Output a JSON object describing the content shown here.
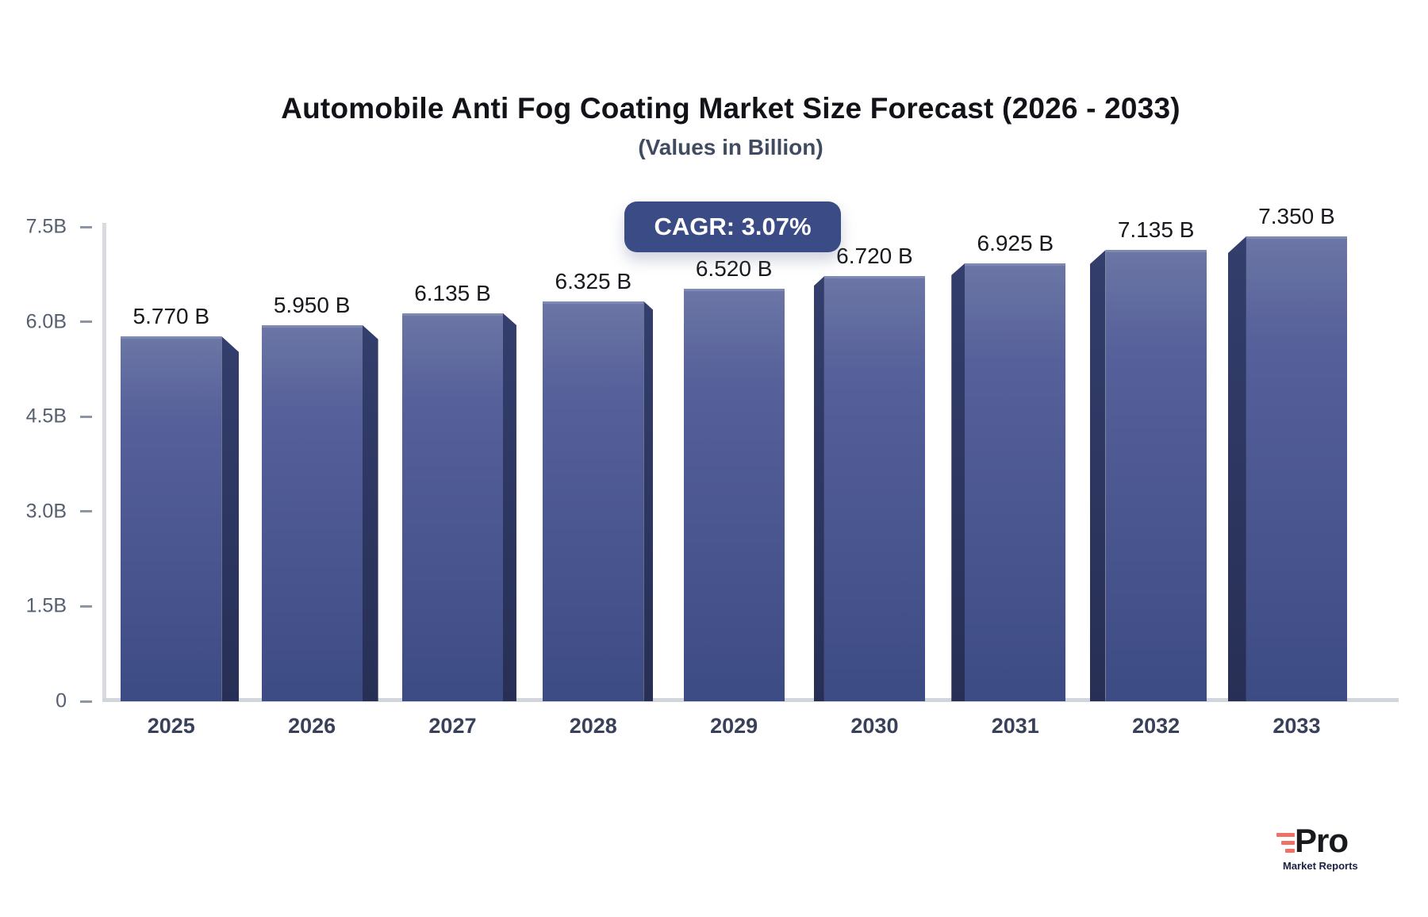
{
  "header": {
    "title": "Automobile Anti Fog Coating Market Size Forecast (2026 - 2033)",
    "subtitle": "(Values in Billion)"
  },
  "badge": {
    "cagr_label": "CAGR: 3.07%",
    "background_color": "#3a4b85",
    "text_color": "#ffffff"
  },
  "chart_data": {
    "type": "bar",
    "title": "Automobile Anti Fog Coating Market Size Forecast (2026 - 2033)",
    "subtitle": "(Values in Billion)",
    "unit": "Billion",
    "categories": [
      "2025",
      "2026",
      "2027",
      "2028",
      "2029",
      "2030",
      "2031",
      "2032",
      "2033"
    ],
    "values": [
      5.77,
      5.95,
      6.135,
      6.325,
      6.52,
      6.72,
      6.925,
      7.135,
      7.35
    ],
    "value_labels": [
      "5.770 B",
      "5.950 B",
      "6.135 B",
      "6.325 B",
      "6.520 B",
      "6.720 B",
      "6.925 B",
      "7.135 B",
      "7.350 B"
    ],
    "annotation": "CAGR: 3.07%",
    "xlabel": "",
    "ylabel": "",
    "ylim": [
      0,
      7.5
    ],
    "grid": false,
    "legend_position": "none",
    "y_axis": {
      "ticks": [
        {
          "label": "0",
          "value": 0
        },
        {
          "label": "1.5B",
          "value": 1.5
        },
        {
          "label": "3.0B",
          "value": 3.0
        },
        {
          "label": "4.5B",
          "value": 4.5
        },
        {
          "label": "6.0B",
          "value": 6.0
        },
        {
          "label": "7.5B",
          "value": 7.5
        }
      ]
    },
    "bar_style": {
      "effect": "3d-perspective-center-vanishing-point",
      "face_gradient_top": "#6b76a5",
      "face_gradient_bottom": "#3d4b85",
      "side_color": "#2b355f",
      "top_highlight": "#7f8ab3"
    }
  },
  "logo": {
    "brand": "Pro",
    "tagline": "Market Reports",
    "accent_color": "#ef7165",
    "text_color": "#1b2142"
  }
}
